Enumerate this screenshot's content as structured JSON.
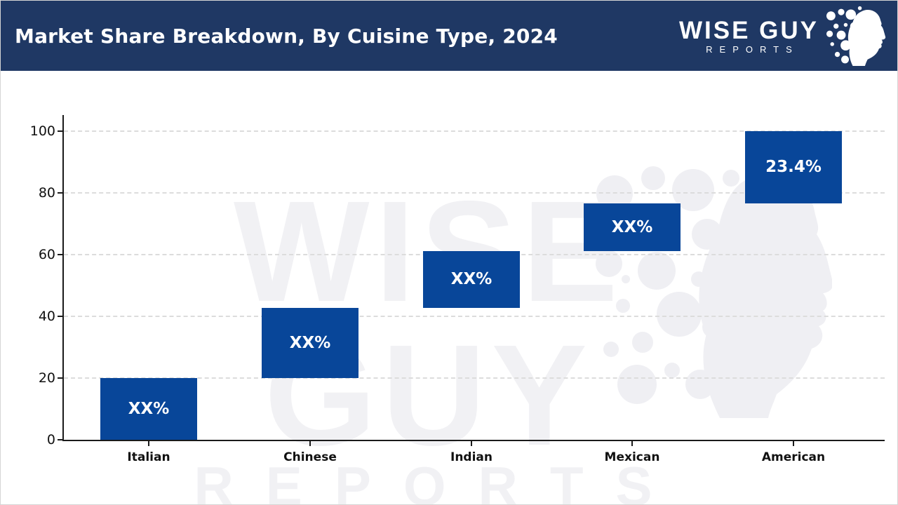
{
  "header": {
    "title": "Market Share Breakdown, By Cuisine Type, 2024",
    "bg_color": "#1f3864",
    "logo": {
      "line1": "WISE GUY",
      "line2": "REPORTS"
    }
  },
  "watermark": {
    "line1": "WISE GUY",
    "line2": "REPORTS"
  },
  "chart_data": {
    "type": "bar",
    "subtype": "floating-waterfall",
    "title": "Market Share Breakdown, By Cuisine Type, 2024",
    "categories": [
      "Italian",
      "Chinese",
      "Indian",
      "Mexican",
      "American"
    ],
    "segments": [
      {
        "category": "Italian",
        "start": 0,
        "end": 20.0,
        "label": "XX%"
      },
      {
        "category": "Chinese",
        "start": 20.0,
        "end": 42.8,
        "label": "XX%"
      },
      {
        "category": "Indian",
        "start": 42.8,
        "end": 61.2,
        "label": "XX%"
      },
      {
        "category": "Mexican",
        "start": 61.2,
        "end": 76.6,
        "label": "XX%"
      },
      {
        "category": "American",
        "start": 76.6,
        "end": 100.0,
        "label": "23.4%"
      }
    ],
    "values_estimated": [
      20.0,
      22.8,
      18.4,
      15.4,
      23.4
    ],
    "bar_labels": [
      "XX%",
      "XX%",
      "XX%",
      "XX%",
      "23.4%"
    ],
    "yticks": [
      0,
      20,
      40,
      60,
      80,
      100
    ],
    "ylim": [
      0,
      100
    ],
    "xlabel": "",
    "ylabel": "",
    "legend": "none",
    "grid": "horizontal-dashed",
    "bar_color": "#084699",
    "grid_color": "#dcdcdc",
    "axis_color": "#1a1a1a"
  }
}
